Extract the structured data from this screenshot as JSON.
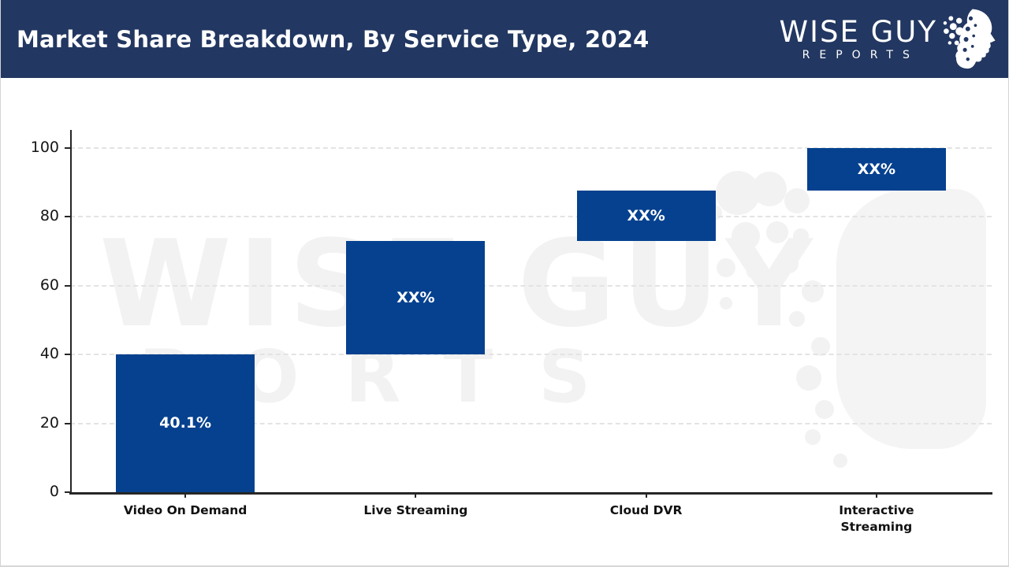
{
  "header": {
    "title": "Market Share Breakdown, By Service Type, 2024",
    "logo": {
      "line1": "WISE GUY",
      "line2": "REPORTS"
    }
  },
  "watermark": {
    "line1": "WISE GUY",
    "line2": "PORTS"
  },
  "chart_data": {
    "type": "bar",
    "subtype": "waterfall",
    "title": "Market Share Breakdown, By Service Type, 2024",
    "categories": [
      "Video On Demand",
      "Live Streaming",
      "Cloud DVR",
      "Interactive\nStreaming"
    ],
    "series": [
      {
        "name": "Market Share %",
        "starts": [
          0,
          40.1,
          72.9,
          87.5
        ],
        "ends": [
          40.1,
          72.9,
          87.5,
          100
        ],
        "deltas": [
          40.1,
          32.8,
          14.6,
          12.5
        ]
      }
    ],
    "bar_labels": [
      "40.1%",
      "XX%",
      "XX%",
      "XX%"
    ],
    "xlabel": "",
    "ylabel": "",
    "ylim": [
      0,
      100
    ],
    "yticks": [
      0,
      20,
      40,
      60,
      80,
      100
    ],
    "grid": "horizontal-dashed",
    "legend": "none",
    "bar_color": "#05418f",
    "bar_label_color": "#ffffff",
    "axis_color": "#262626",
    "grid_color": "#e3e3e3",
    "header_color": "#223761"
  }
}
